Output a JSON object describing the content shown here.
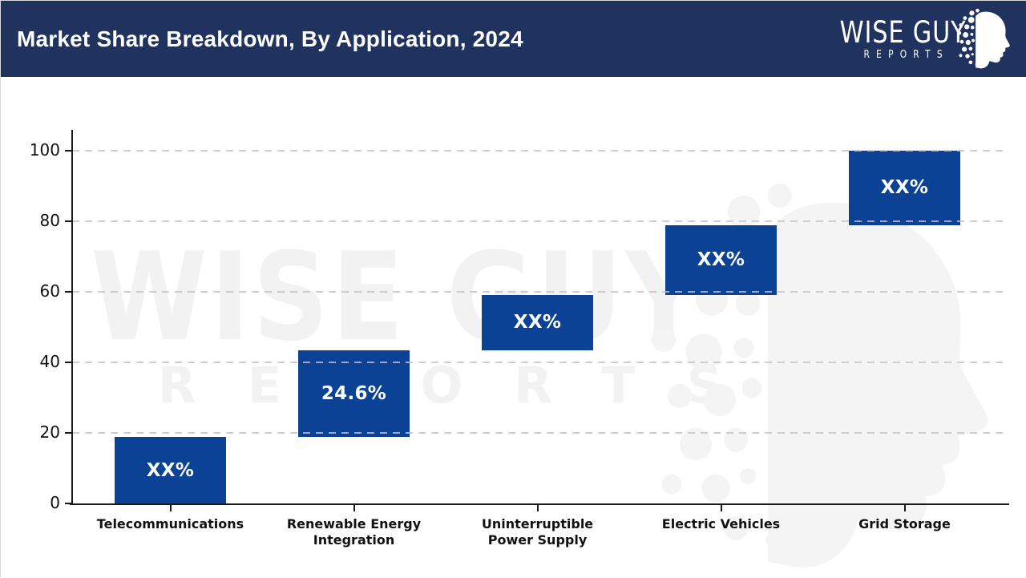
{
  "header": {
    "title": "Market Share Breakdown, By Application, 2024",
    "logo_line1": "WISE GUY",
    "logo_line2": "REPORTS"
  },
  "watermark": {
    "line1": "WISE GUY",
    "line2": "REPORTS"
  },
  "chart_data": {
    "type": "bar",
    "variant": "waterfall",
    "title": "Market Share Breakdown, By Application, 2024",
    "categories": [
      [
        "Telecommunications"
      ],
      [
        "Renewable Energy",
        "Integration"
      ],
      [
        "Uninterruptible",
        "Power Supply"
      ],
      [
        "Electric Vehicles"
      ],
      [
        "Grid Storage"
      ]
    ],
    "segments": [
      {
        "category": "Telecommunications",
        "start": 0,
        "end": 18.8,
        "label": "XX%"
      },
      {
        "category": "Renewable Energy Integration",
        "start": 18.8,
        "end": 43.4,
        "label": "24.6%"
      },
      {
        "category": "Uninterruptible Power Supply",
        "start": 43.4,
        "end": 59.2,
        "label": "XX%"
      },
      {
        "category": "Electric Vehicles",
        "start": 59.2,
        "end": 78.9,
        "label": "XX%"
      },
      {
        "category": "Grid Storage",
        "start": 78.9,
        "end": 100,
        "label": "XX%"
      }
    ],
    "ylim": [
      0,
      100
    ],
    "yticks": [
      0,
      20,
      40,
      60,
      80,
      100
    ],
    "grid": {
      "horizontal": true,
      "style": "dashed"
    },
    "legend": "none",
    "bar_color": "#0b4296"
  },
  "colors": {
    "header_bg": "#20335f",
    "bar": "#0b4296",
    "axis": "#1a1a1a",
    "gridline": "#d4d4d4",
    "watermark": "#f2f2f2",
    "value_label": "#ffffff"
  }
}
